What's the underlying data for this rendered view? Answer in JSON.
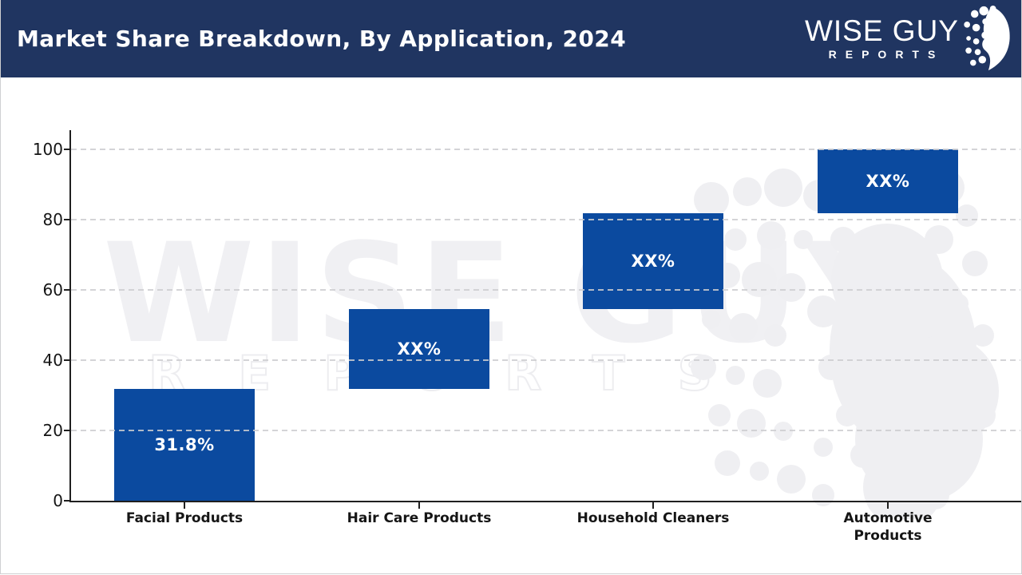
{
  "header": {
    "title": "Market Share Breakdown, By Application, 2024",
    "logo": {
      "line1": "WISE GUY",
      "line2": "REPORTS"
    }
  },
  "watermark": {
    "line1": "WISE GUY",
    "line2": "REPORTS"
  },
  "colors": {
    "header_bg": "#203561",
    "bar": "#0b4a9f",
    "grid": "#d5d5d8",
    "axis": "#1f1f1f",
    "bar_label_text": "#ffffff",
    "watermark": "#f0f0f3"
  },
  "chart_data": {
    "type": "bar",
    "subtype": "waterfall",
    "title": "Market Share Breakdown, By Application, 2024",
    "xlabel": "",
    "ylabel": "",
    "legend": "none",
    "grid": "horizontal dashed",
    "ylim": [
      0,
      100
    ],
    "yticks": [
      0,
      20,
      40,
      60,
      80,
      100
    ],
    "categories": [
      "Facial Products",
      "Hair Care Products",
      "Household Cleaners",
      "Automotive\nProducts"
    ],
    "series": [
      {
        "name": "Market Share",
        "segments": [
          {
            "category": "Facial Products",
            "start": 0,
            "end": 31.8,
            "label": "31.8%"
          },
          {
            "category": "Hair Care Products",
            "start": 31.8,
            "end": 54.5,
            "label": "XX%"
          },
          {
            "category": "Household Cleaners",
            "start": 54.5,
            "end": 81.8,
            "label": "XX%"
          },
          {
            "category": "Automotive Products",
            "start": 81.8,
            "end": 100,
            "label": "XX%"
          }
        ]
      }
    ]
  }
}
